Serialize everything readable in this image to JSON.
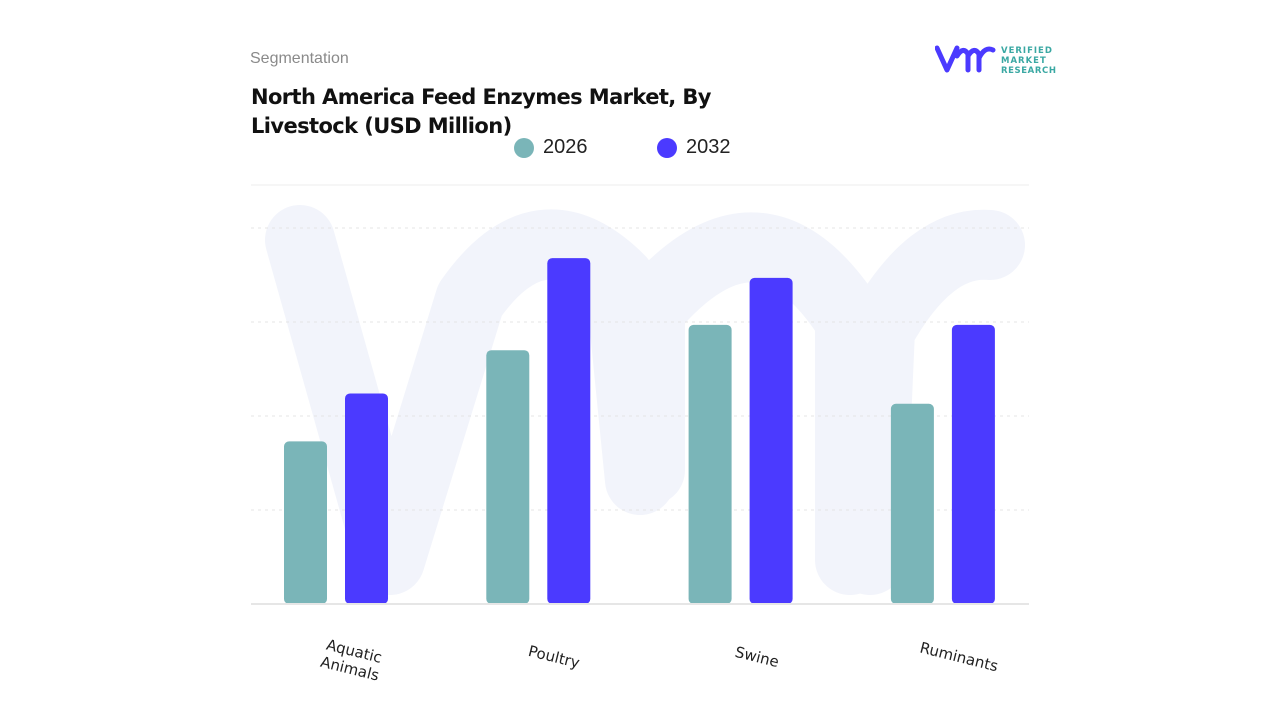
{
  "header": {
    "segment_label": "Segmentation",
    "title": "North America Feed Enzymes Market, By Livestock (USD Million)"
  },
  "logo": {
    "text": [
      "VERIFIED",
      "MARKET",
      "RESEARCH"
    ],
    "mark": "vmr"
  },
  "colors": {
    "series_2026": "#7ab5b8",
    "series_2032": "#4b3aff",
    "watermark": "#f2f4fb",
    "grid": "#e6e6e6"
  },
  "chart_data": {
    "type": "bar",
    "title": "North America Feed Enzymes Market, By Livestock (USD Million)",
    "categories": [
      "Aquatic Animals",
      "Poultry",
      "Swine",
      "Ruminants"
    ],
    "series": [
      {
        "name": "2026",
        "values": [
          1.73,
          2.7,
          2.97,
          2.13
        ]
      },
      {
        "name": "2032",
        "values": [
          2.24,
          3.68,
          3.47,
          2.97
        ]
      }
    ],
    "ylim": [
      0,
      4
    ],
    "y_tick_labels_shown": false,
    "grid": true,
    "legend_position": "top"
  }
}
